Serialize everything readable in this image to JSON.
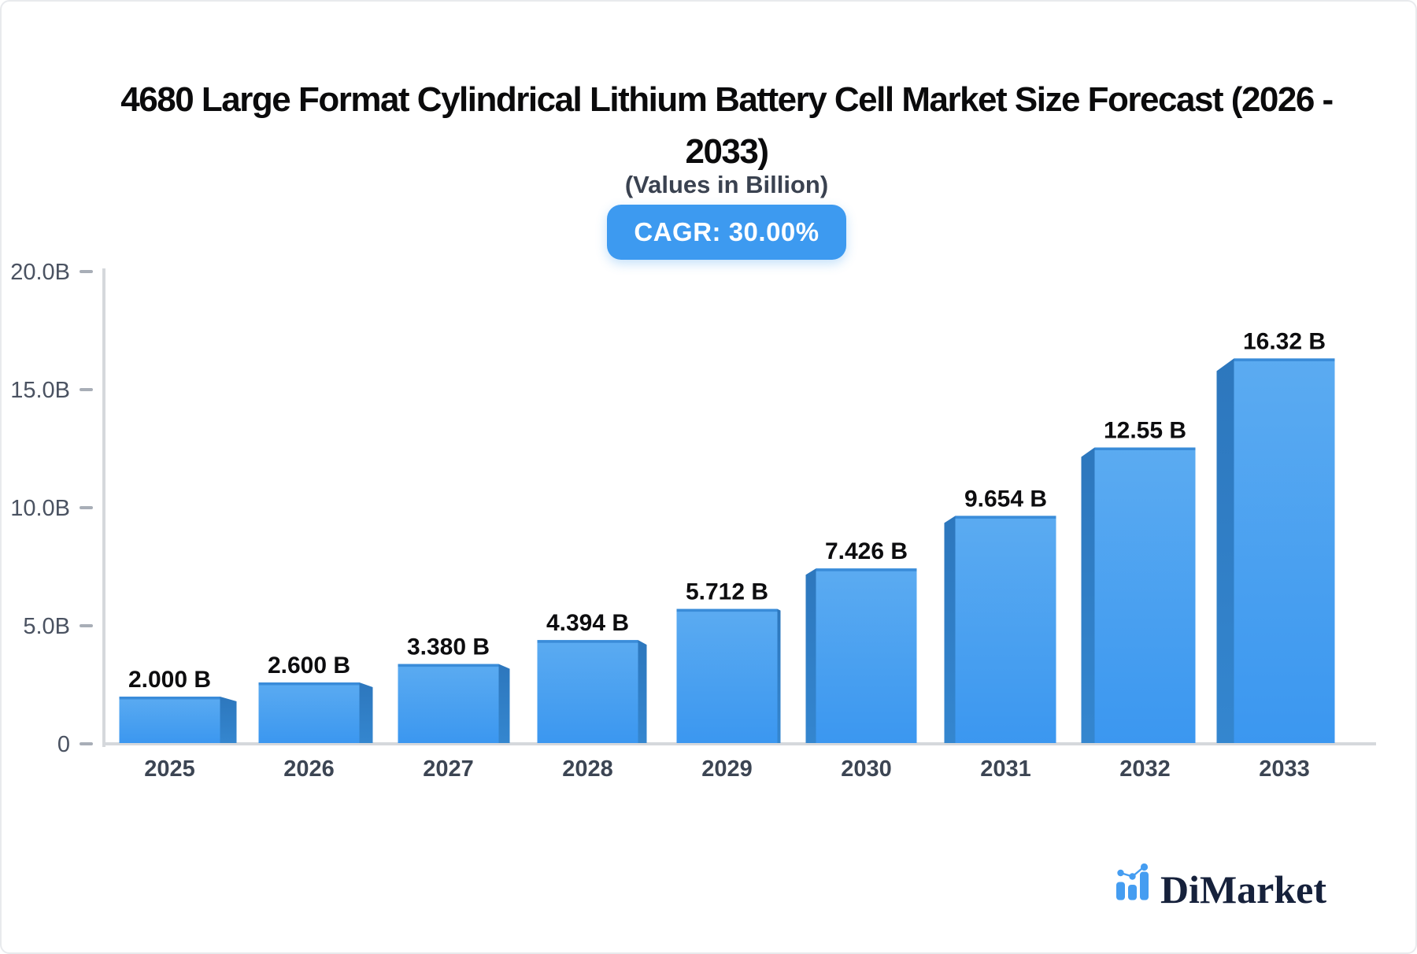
{
  "header": {
    "title_line1": "4680 Large Format Cylindrical Lithium Battery Cell Market Size Forecast (2026 -",
    "title_line2": "2033)",
    "subtitle": "(Values in Billion)",
    "cagr_label": "CAGR: 30.00%"
  },
  "branding": {
    "logo_text": "DiMarket",
    "logo_icon": "mini-bar-chart-icon"
  },
  "chart_data": {
    "type": "bar",
    "title": "4680 Large Format Cylindrical Lithium Battery Cell Market Size Forecast (2026 - 2033)",
    "subtitle": "(Values in Billion)",
    "cagr": "30.00%",
    "categories": [
      "2025",
      "2026",
      "2027",
      "2028",
      "2029",
      "2030",
      "2031",
      "2032",
      "2033"
    ],
    "values": [
      2.0,
      2.6,
      3.38,
      4.394,
      5.712,
      7.426,
      9.654,
      12.55,
      16.32
    ],
    "value_labels": [
      "2.000 B",
      "2.600 B",
      "3.380 B",
      "4.394 B",
      "5.712 B",
      "7.426 B",
      "9.654 B",
      "12.55 B",
      "16.32 B"
    ],
    "xlabel": "",
    "ylabel": "",
    "ylim": [
      0,
      20
    ],
    "y_tick_values": [
      0,
      5,
      10,
      15,
      20
    ],
    "y_tick_labels": [
      "0",
      "5.0B",
      "10.0B",
      "15.0B",
      "20.0B"
    ],
    "grid": false,
    "legend": false,
    "effect": "pseudo-3d bars, side faces angled toward chart center",
    "colors": {
      "bar_top": "#5babf1",
      "bar_bottom": "#3b97f0",
      "bar_side_top": "#2d77bd",
      "bar_side_bottom": "#3486cf",
      "bar_edge": "#3a8cd9",
      "axis": "#d5d8dc",
      "tick": "#a8aeb7",
      "y_label_color": "#4a5261",
      "x_label_color": "#3c4553",
      "value_label_color": "#0d0d0f",
      "badge_bg": "#3d9af0",
      "logo_blue": "#459df1",
      "logo_text_color": "#16213b"
    }
  }
}
